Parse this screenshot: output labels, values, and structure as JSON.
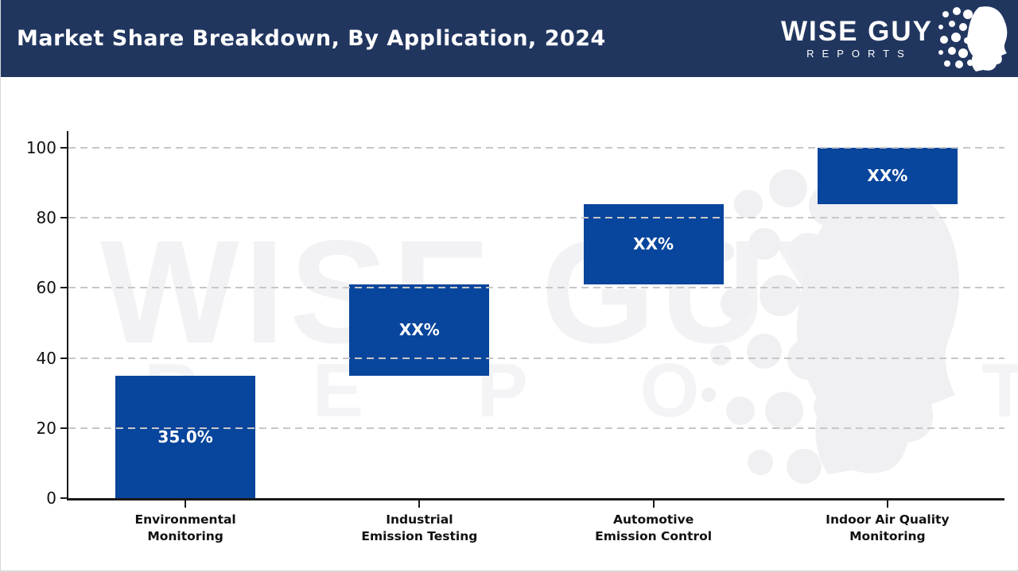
{
  "header": {
    "title": "Market Share Breakdown, By Application, 2024",
    "logo": {
      "line1": "WISE GUY",
      "line2": "REPORTS"
    }
  },
  "watermark": {
    "line1": "WISE GUY",
    "line2": "R E P O R T S"
  },
  "colors": {
    "header_bg": "#21365f",
    "bar": "#08459c",
    "grid": "#c7c7c7",
    "axis": "#1a1a1a",
    "bar_label_text": "#ffffff",
    "watermark": "#f2f2f4"
  },
  "chart_data": {
    "type": "bar",
    "subtype": "waterfall-stacked-percentage",
    "title": "Market Share Breakdown, By Application, 2024",
    "categories": [
      [
        "Environmental",
        "Monitoring"
      ],
      [
        "Industrial",
        "Emission Testing"
      ],
      [
        "Automotive",
        "Emission Control"
      ],
      [
        "Indoor Air Quality",
        "Monitoring"
      ]
    ],
    "segments": [
      {
        "start": 0,
        "end": 35,
        "value": 35,
        "label": "35.0%"
      },
      {
        "start": 35,
        "end": 61,
        "value": 26,
        "label": "XX%"
      },
      {
        "start": 61,
        "end": 84,
        "value": 23,
        "label": "XX%"
      },
      {
        "start": 84,
        "end": 100,
        "value": 16,
        "label": "XX%"
      }
    ],
    "xlabel": "",
    "ylabel": "",
    "yticks": [
      0,
      20,
      40,
      60,
      80,
      100
    ],
    "ylim": [
      0,
      100
    ],
    "grid": "horizontal-dashed-over-bars",
    "legend": "none"
  }
}
